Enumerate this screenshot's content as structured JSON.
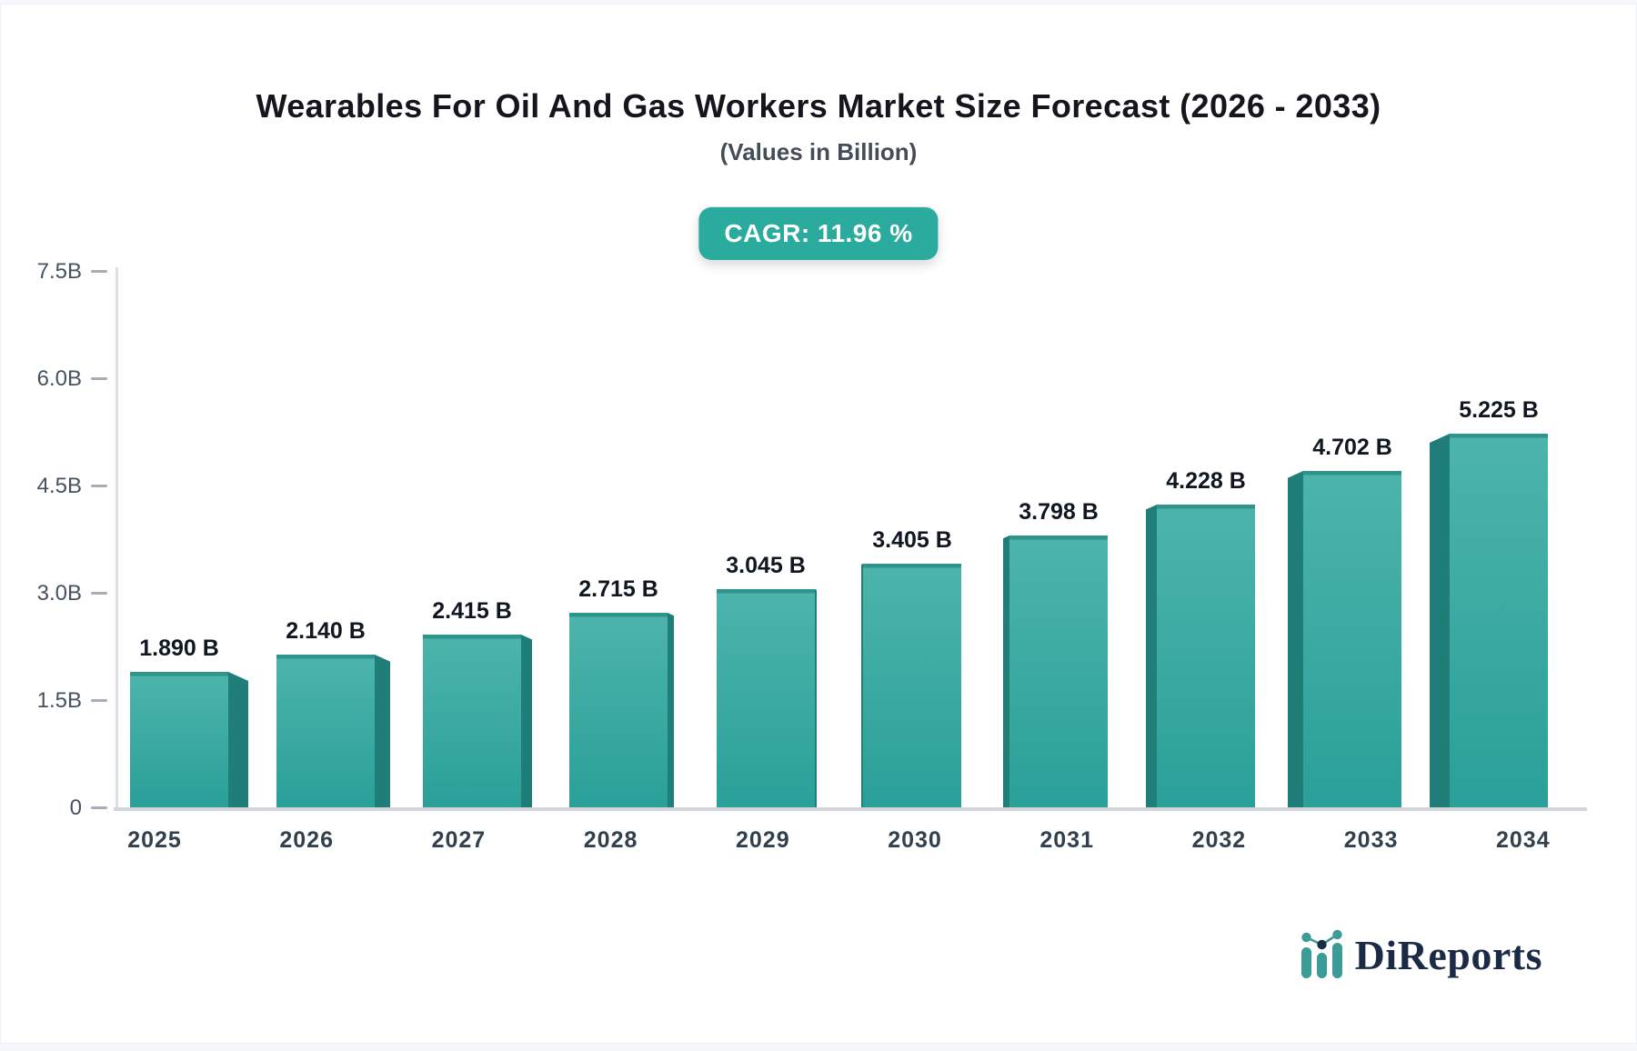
{
  "title": "Wearables For Oil And Gas Workers Market Size Forecast (2026 - 2033)",
  "subtitle": "(Values in Billion)",
  "badge": {
    "label": "CAGR: 11.96 %"
  },
  "logo": {
    "text": "DiReports",
    "icon": "bar-chart-logo-icon"
  },
  "chart_data": {
    "type": "bar",
    "title": "Wearables For Oil And Gas Workers Market Size Forecast (2026 - 2033)",
    "subtitle": "(Values in Billion)",
    "categories": [
      "2025",
      "2026",
      "2027",
      "2028",
      "2029",
      "2030",
      "2031",
      "2032",
      "2033",
      "2034"
    ],
    "values": [
      1.89,
      2.14,
      2.415,
      2.715,
      3.045,
      3.405,
      3.798,
      4.228,
      4.702,
      5.225
    ],
    "value_labels": [
      "1.890 B",
      "2.140 B",
      "2.415 B",
      "2.715 B",
      "3.045 B",
      "3.405 B",
      "3.798 B",
      "4.228 B",
      "4.702 B",
      "5.225 B"
    ],
    "xlabel": "",
    "ylabel": "",
    "ylim": [
      0,
      7.5
    ],
    "yticks": [
      {
        "value": 0.0,
        "label": "0"
      },
      {
        "value": 1.5,
        "label": "1.5B"
      },
      {
        "value": 3.0,
        "label": "3.0B"
      },
      {
        "value": 4.5,
        "label": "4.5B"
      },
      {
        "value": 6.0,
        "label": "6.0B"
      },
      {
        "value": 7.5,
        "label": "7.5B"
      }
    ],
    "grid": false,
    "legend": "none",
    "bar_style": "3d-perspective-extruded-bars",
    "cagr_percent": 11.96
  },
  "colors": {
    "bar_face_top": "#4cb4ab",
    "bar_face_bottom": "#2aa098",
    "bar_top_edge": "#2f958c",
    "bar_side": "#1f7e77",
    "badge_bg": "#2baa9e",
    "axis_line": "#dcdfe4",
    "baseline": "#d3d7dc",
    "tick_dash": "#a5adb7",
    "tick_label": "#46525f",
    "year_label": "#32404e",
    "value_label": "#101720",
    "title": "#15151d",
    "subtitle": "#434c58",
    "logo_navy": "#1b2b46",
    "logo_teal": "#3a9b97"
  }
}
